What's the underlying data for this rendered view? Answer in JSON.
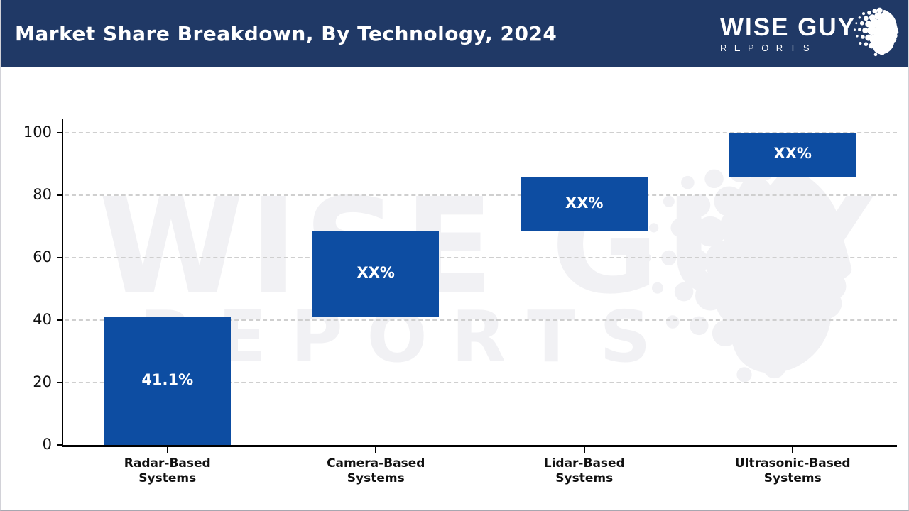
{
  "page": {
    "bg_color": "#ffffff",
    "border_color": "#a7a7b0"
  },
  "header": {
    "bg_color": "#203966",
    "title": "Market Share Breakdown, By Technology, 2024",
    "title_color": "#ffffff",
    "logo": {
      "wordmark": "WISE GUY",
      "subtitle": "REPORTS",
      "color": "#ffffff"
    }
  },
  "watermark": {
    "wordmark": "WISE GUY",
    "subtitle": "REPORTS",
    "color": "#f1f1f4"
  },
  "chart_data": {
    "type": "bar",
    "subtype": "waterfall",
    "title": "Market Share Breakdown, By Technology, 2024",
    "categories": [
      "Radar-Based Systems",
      "Camera-Based Systems",
      "Lidar-Based Systems",
      "Ultrasonic-Based Systems"
    ],
    "segments": [
      {
        "category": "Radar-Based Systems",
        "start": 0,
        "end": 41.1,
        "label": "41.1%"
      },
      {
        "category": "Camera-Based Systems",
        "start": 41.1,
        "end": 68.6,
        "label": "XX%"
      },
      {
        "category": "Lidar-Based Systems",
        "start": 68.6,
        "end": 85.7,
        "label": "XX%"
      },
      {
        "category": "Ultrasonic-Based Systems",
        "start": 85.7,
        "end": 100,
        "label": "XX%"
      }
    ],
    "xlabel": "",
    "ylabel": "",
    "ylim": [
      0,
      100
    ],
    "yticks": [
      0,
      20,
      40,
      60,
      80,
      100
    ],
    "grid": "horizontal-dashed",
    "legend": "none",
    "bar_color": "#0d4da2",
    "bar_label_color": "#ffffff",
    "axis_color": "#000000",
    "grid_color": "#cfcfcf",
    "tick_label_color": "#111111"
  }
}
